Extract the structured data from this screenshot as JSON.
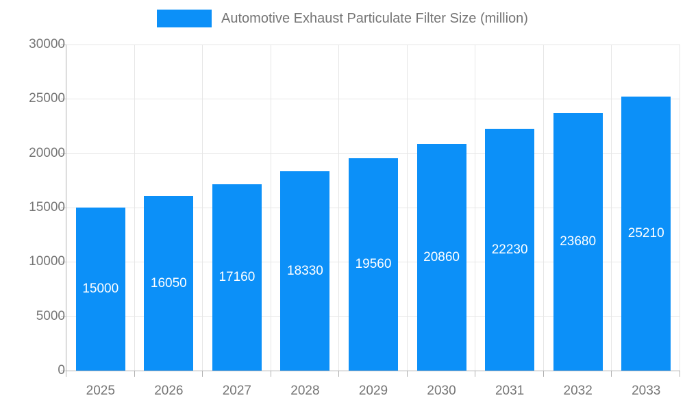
{
  "chart_data": {
    "type": "bar",
    "title": "Automotive Exhaust Particulate Filter Size (million)",
    "legend": {
      "label": "Automotive Exhaust Particulate Filter Size (million)",
      "position": "top-center"
    },
    "categories": [
      "2025",
      "2026",
      "2027",
      "2028",
      "2029",
      "2030",
      "2031",
      "2032",
      "2033"
    ],
    "series": [
      {
        "name": "Automotive Exhaust Particulate Filter Size (million)",
        "values": [
          15000,
          16050,
          17160,
          18330,
          19560,
          20860,
          22230,
          23680,
          25210
        ]
      }
    ],
    "value_labels": [
      "15000",
      "16050",
      "17160",
      "18330",
      "19560",
      "20860",
      "22230",
      "23680",
      "25210"
    ],
    "xlabel": "",
    "ylabel": "",
    "ylim": [
      0,
      30000
    ],
    "ytick_step": 5000,
    "yticks": [
      "0",
      "5000",
      "10000",
      "15000",
      "20000",
      "25000",
      "30000"
    ],
    "grid": "on",
    "colors": {
      "bar": "#0c90f8",
      "bar_value_text": "#ffffff",
      "axis_text": "#757575",
      "axis_line": "#b0b0b0",
      "gridline": "#e6e6e6",
      "background": "#ffffff"
    }
  }
}
